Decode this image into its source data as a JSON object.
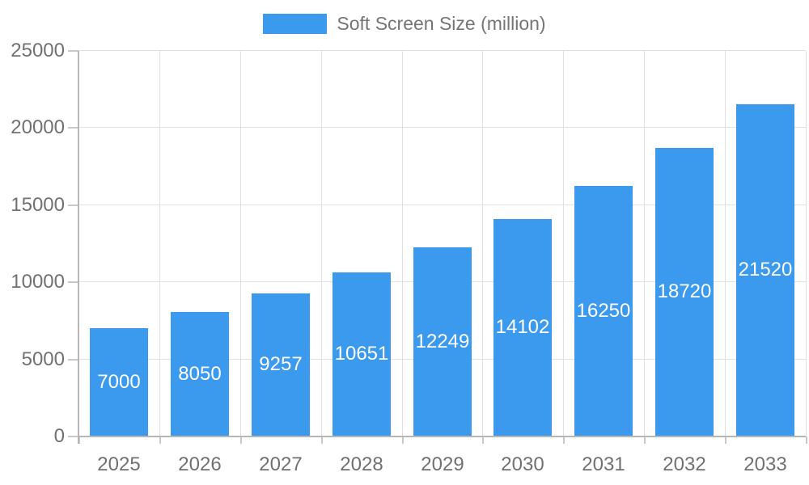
{
  "legend": {
    "label": "Soft Screen Size (million)"
  },
  "colors": {
    "bar": "#3B99EE",
    "axis_text": "#717171",
    "legend_text": "#757575",
    "value_text": "#FFFFFF",
    "gridline": "#E0E0E0",
    "axis_line": "#B6B6B6",
    "tick": "#C9C9C9",
    "background": "#FFFFFF"
  },
  "chart_data": {
    "type": "bar",
    "title": "",
    "xlabel": "",
    "ylabel": "",
    "categories": [
      "2025",
      "2026",
      "2027",
      "2028",
      "2029",
      "2030",
      "2031",
      "2032",
      "2033"
    ],
    "series": [
      {
        "name": "Soft Screen Size (million)",
        "values": [
          7000,
          8050,
          9257,
          10651,
          12249,
          14102,
          16250,
          18720,
          21520
        ]
      }
    ],
    "ylim": [
      0,
      25000
    ],
    "yticks": [
      0,
      5000,
      10000,
      15000,
      20000,
      25000
    ],
    "grid": true,
    "legend_position": "top-center",
    "value_label_position": "inside-center"
  }
}
